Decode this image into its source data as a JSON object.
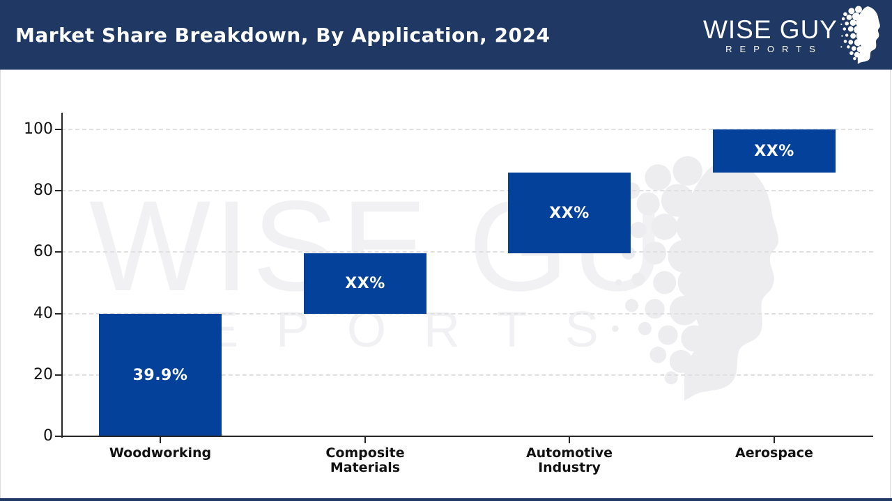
{
  "header": {
    "title": "Market Share Breakdown, By Application, 2024",
    "logo": {
      "wordmark": "WISE GUY",
      "subtext": "REPORTS"
    }
  },
  "watermark": {
    "wordmark": "WISE GUY",
    "subtext": "REPORTS"
  },
  "colors": {
    "header_bg": "#1f3864",
    "bar_blue": "#04419b",
    "grid_line": "#e0e0e0",
    "axis": "#262626",
    "bar_label": "#ffffff",
    "watermark": "#f1f1f3"
  },
  "chart_data": {
    "type": "bar",
    "subtype": "stepped waterfall breakdown",
    "title": "Market Share Breakdown, By Application, 2024",
    "categories": [
      "Woodworking",
      "Composite Materials",
      "Automotive Industry",
      "Aerospace"
    ],
    "category_label_lines": [
      [
        "Woodworking"
      ],
      [
        "Composite",
        "Materials"
      ],
      [
        "Automotive",
        "Industry"
      ],
      [
        "Aerospace"
      ]
    ],
    "segments": [
      {
        "category": "Woodworking",
        "start": 0,
        "end": 39.9,
        "label": "39.9%"
      },
      {
        "category": "Composite Materials",
        "start": 39.9,
        "end": 59.6,
        "label": "XX%"
      },
      {
        "category": "Automotive Industry",
        "start": 59.6,
        "end": 86.0,
        "label": "XX%"
      },
      {
        "category": "Aerospace",
        "start": 86.0,
        "end": 100.0,
        "label": "XX%"
      }
    ],
    "ylim": [
      0,
      100
    ],
    "yticks": [
      0,
      20,
      40,
      60,
      80,
      100
    ],
    "grid": "horizontal dashed",
    "legend": "none",
    "bar_value_position": "center"
  }
}
